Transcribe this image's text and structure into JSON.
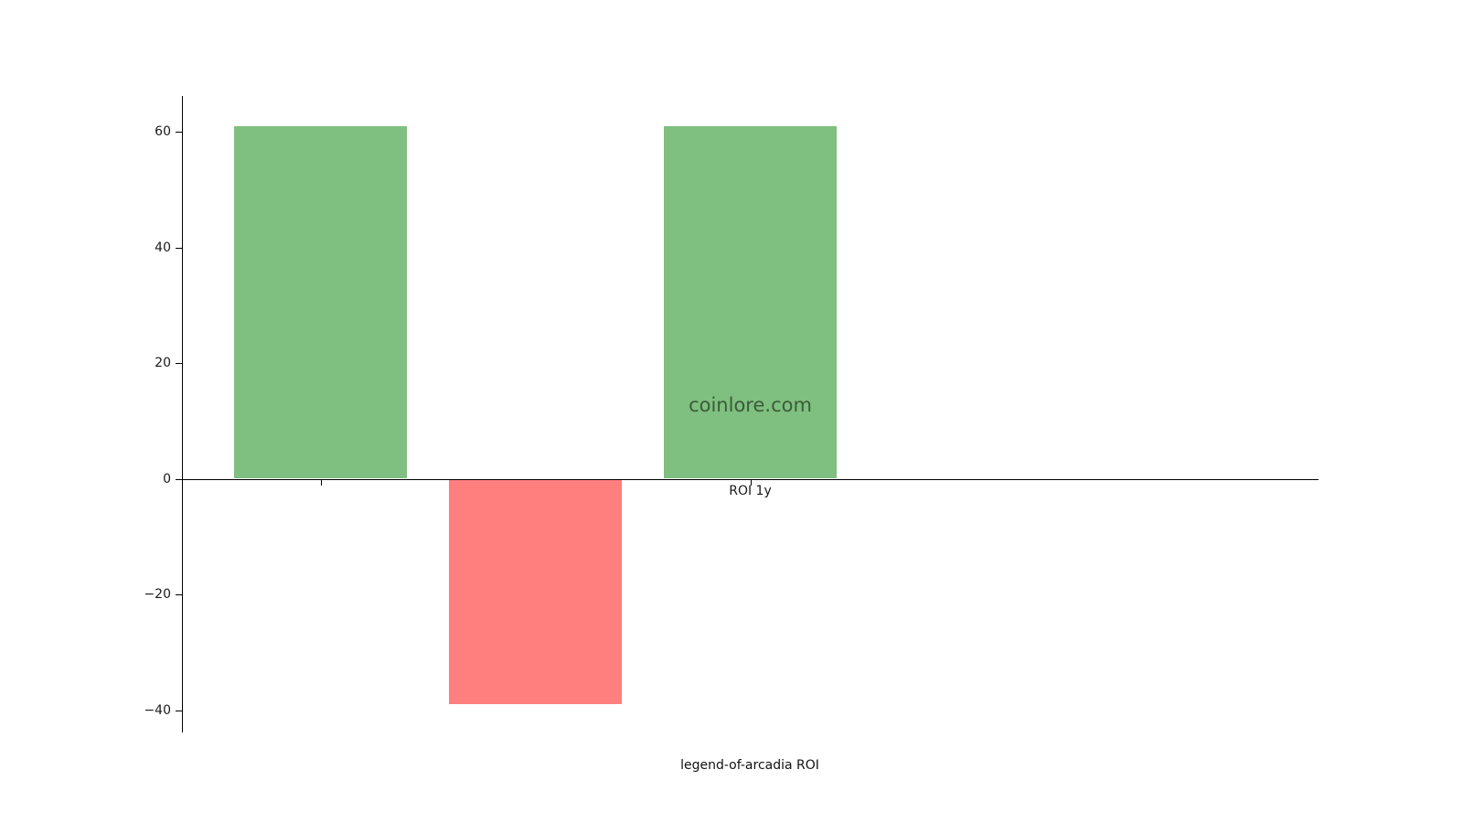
{
  "page": {
    "background_color": "#ffffff"
  },
  "watermark": {
    "text": "coinlore.com",
    "color": "#3a5c3a"
  },
  "chart_data": {
    "type": "bar",
    "title": "legend-of-arcadia ROI",
    "title_position": "bottom-center",
    "categories": [
      "",
      "",
      "ROI 1y"
    ],
    "values": [
      61,
      -39,
      61
    ],
    "bar_colors": [
      "#7fbf7f",
      "#ff7f7f",
      "#7fbf7f"
    ],
    "positive_color": "#7fbf7f",
    "negative_color": "#ff7f7f",
    "xlabel": "",
    "ylabel": "",
    "yticks": [
      60,
      40,
      20,
      0,
      -20,
      -40
    ],
    "ytick_labels": [
      "60",
      "40",
      "20",
      "0",
      "−20",
      "−40"
    ],
    "xtick_bar_indices": [
      0,
      2
    ],
    "xtick_labels": [
      "",
      "ROI 1y"
    ],
    "ylim": [
      -44,
      66
    ],
    "grid": false,
    "legend": "none",
    "watermark": "coinlore.com",
    "axis_color": "#000000",
    "tick_text_color": "#1a1a1a"
  }
}
